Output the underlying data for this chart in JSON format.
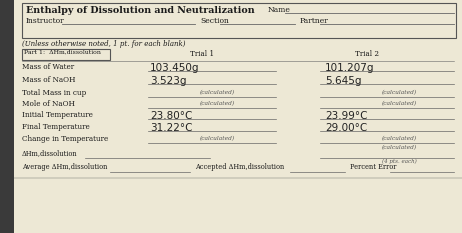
{
  "title": "Enthalpy of Dissolution and Neutralization",
  "name_label": "Name",
  "instructor_label": "Instructor",
  "section_label": "Section",
  "partner_label": "Partner",
  "note": "(Unless otherwise noted, 1 pt. for each blank)",
  "part_label": "Part 1:  ΔHm,dissolution",
  "trial1_header": "Trial 1",
  "trial2_header": "Trial 2",
  "rows": [
    {
      "label": "Mass of Water",
      "t1": "103.450g",
      "t1n": "",
      "t2": "101.207g",
      "t2n": "",
      "hw": true
    },
    {
      "label": "Mass of NaOH",
      "t1": "3.523g",
      "t1n": "",
      "t2": "5.645g",
      "t2n": "",
      "hw": true
    },
    {
      "label": "Total Mass in cup",
      "t1": "",
      "t1n": "(calculated)",
      "t2": "",
      "t2n": "(calculated)",
      "hw": false
    },
    {
      "label": "Mole of NaOH",
      "t1": "",
      "t1n": "(calculated)",
      "t2": "",
      "t2n": "(calculated)",
      "hw": false
    },
    {
      "label": "Initial Temperature",
      "t1": "23.80°C",
      "t1n": "",
      "t2": "23.99°C",
      "t2n": "",
      "hw": true
    },
    {
      "label": "Final Temperature",
      "t1": "31.22°C",
      "t1n": "",
      "t2": "29.00°C",
      "t2n": "",
      "hw": true
    },
    {
      "label": "Change in Temperature",
      "t1": "",
      "t1n": "(calculated)",
      "t2": "",
      "t2n": "(calculated)",
      "hw": false
    }
  ],
  "dh_label": "ΔHm,dissolution",
  "avg_label": "Average ΔHm,dissolution",
  "accepted_label": "Accepted ΔHm,dissolution",
  "percent_label": "Percent Error",
  "pts_note": "(4 pts. each)",
  "bg_color": "#b8a070",
  "paper_color": "#ede8d5",
  "line_color": "#666666",
  "text_color": "#1a1a1a",
  "hw_color": "#222222",
  "note_color": "#555555"
}
